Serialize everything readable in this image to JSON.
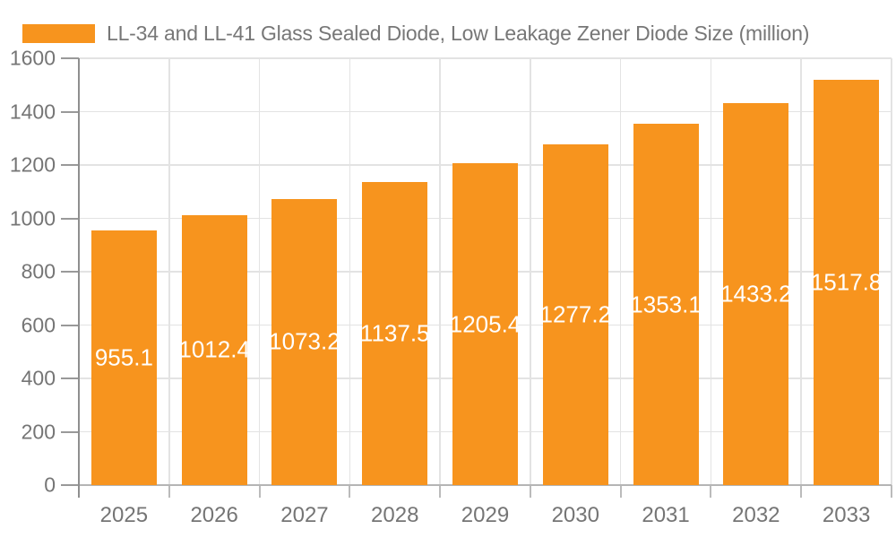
{
  "chart_data": {
    "type": "bar",
    "title": "LL-34 and LL-41 Glass Sealed Diode, Low Leakage Zener Diode Size (million)",
    "categories": [
      "2025",
      "2026",
      "2027",
      "2028",
      "2029",
      "2030",
      "2031",
      "2032",
      "2033"
    ],
    "values": [
      955.1,
      1012.4,
      1073.2,
      1137.5,
      1205.4,
      1277.2,
      1353.1,
      1433.2,
      1517.8
    ],
    "xlabel": "",
    "ylabel": "",
    "ylim": [
      0,
      1600
    ],
    "ytick_step": 200,
    "grid": true,
    "legend_position": "top-left",
    "colors": {
      "bar": "#F7941E",
      "value_label": "#FFFFFF",
      "grid_line": "#E3E3E3",
      "y_axis_line": "#8F8F8F",
      "x_axis_line": "#B5B5B5",
      "y_tick": "#999999",
      "x_tick": "#BBBBBB",
      "tick_label": "#757575",
      "title_text": "#777777",
      "background": "#FFFFFF"
    }
  }
}
